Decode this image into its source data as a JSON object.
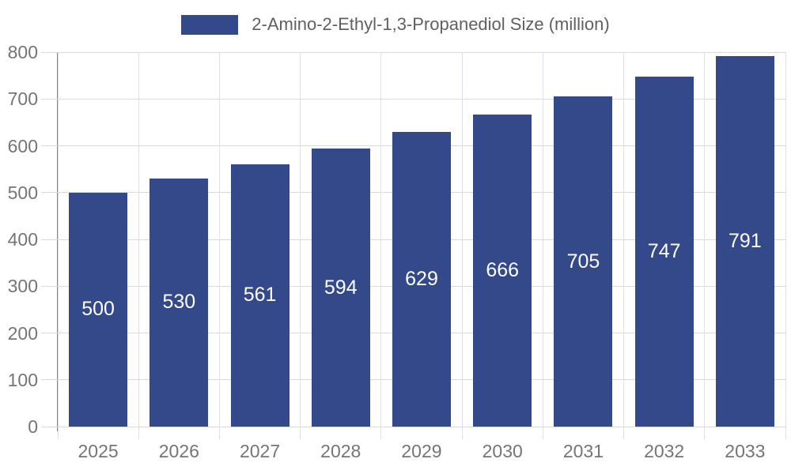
{
  "chart_data": {
    "type": "bar",
    "title": "2-Amino-2-Ethyl-1,3-Propanediol Size (million)",
    "categories": [
      "2025",
      "2026",
      "2027",
      "2028",
      "2029",
      "2030",
      "2031",
      "2032",
      "2033"
    ],
    "series": [
      {
        "name": "2-Amino-2-Ethyl-1,3-Propanediol Size (million)",
        "values": [
          500,
          530,
          561,
          594,
          629,
          666,
          705,
          747,
          791
        ]
      }
    ],
    "xlabel": "",
    "ylabel": "",
    "ylim": [
      0,
      800
    ],
    "ytick_step": 100,
    "grid": true,
    "legend_position": "top",
    "value_labels": "inside-center",
    "colors": {
      "bar": "#34498a",
      "value_text": "#ffffff",
      "axis_text": "#757575",
      "legend_text": "#606060",
      "gridline_h": "#d9d9d9",
      "gridline_v": "#dcdfe8",
      "axis_line": "#85858d",
      "background": "#ffffff"
    }
  }
}
